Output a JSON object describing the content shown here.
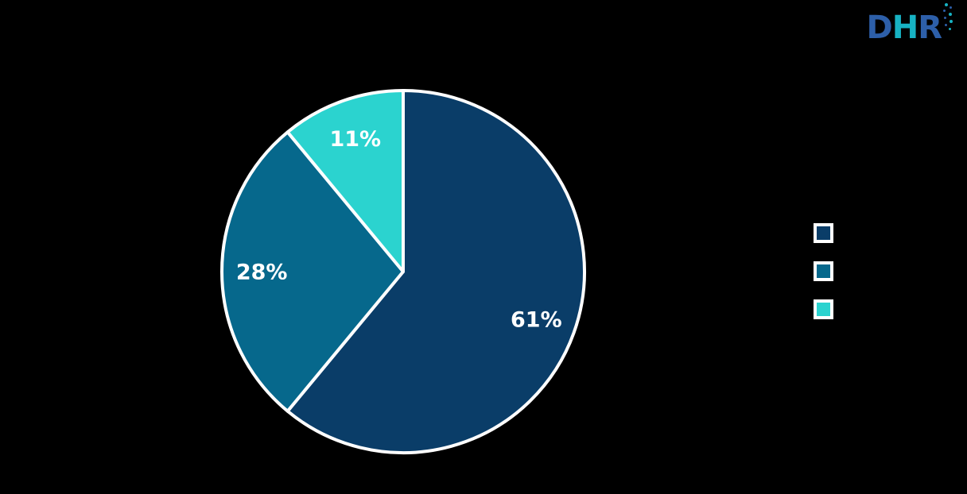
{
  "logo": {
    "text": "DHR",
    "letters": [
      {
        "char": "D",
        "color": "#2d5fa9"
      },
      {
        "char": "H",
        "color": "#17b2c3"
      },
      {
        "char": "R",
        "color": "#2d5fa9"
      }
    ],
    "sparkle_colors": [
      "#17b2c3",
      "#2d5fa9"
    ]
  },
  "chart_data": {
    "type": "pie",
    "categories": [
      "",
      "",
      ""
    ],
    "values": [
      61,
      28,
      11
    ],
    "labels": [
      "61%",
      "28%",
      "11%"
    ],
    "colors": [
      "#0a3d68",
      "#06688c",
      "#2bd3cf"
    ],
    "title": "",
    "start_angle_deg": 0,
    "direction": "clockwise",
    "slice_stroke_color": "#ffffff",
    "slice_stroke_width": 4,
    "label_color": "#ffffff",
    "legend_position": "right",
    "legend_labels_visible": false,
    "background": "#000000"
  }
}
